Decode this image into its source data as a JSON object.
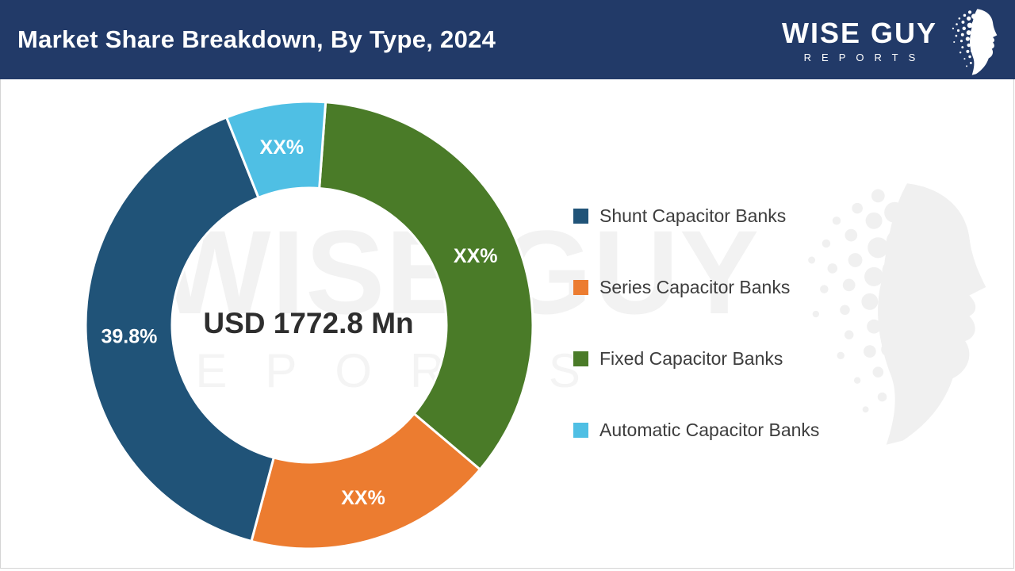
{
  "header": {
    "title": "Market Share Breakdown, By Type, 2024",
    "logo": {
      "line1": "WISE GUY",
      "line2": "REPORTS"
    }
  },
  "watermark": {
    "line1": "WISE GUY",
    "line2": "REPORTS"
  },
  "chart_data": {
    "type": "pie",
    "subtype": "donut",
    "title": "Market Share Breakdown, By Type, 2024",
    "center_label": "USD 1772.8 Mn",
    "start_angle_deg": 4.2,
    "clockwise": true,
    "inner_radius_ratio": 0.613,
    "segments": [
      {
        "name": "Fixed Capacitor Banks",
        "display_label": "XX%",
        "value_pct": 35.0,
        "color": "#4a7b28"
      },
      {
        "name": "Series Capacitor Banks",
        "display_label": "XX%",
        "value_pct": 18.0,
        "color": "#ec7c30"
      },
      {
        "name": "Shunt Capacitor Banks",
        "display_label": "39.8%",
        "value_pct": 39.8,
        "color": "#205378"
      },
      {
        "name": "Automatic Capacitor Banks",
        "display_label": "XX%",
        "value_pct": 7.2,
        "color": "#4fbfe4"
      }
    ],
    "legend": [
      {
        "label": "Shunt Capacitor Banks",
        "color": "#205378"
      },
      {
        "label": "Series Capacitor Banks",
        "color": "#ec7c30"
      },
      {
        "label": "Fixed Capacitor Banks",
        "color": "#4a7b28"
      },
      {
        "label": "Automatic Capacitor Banks",
        "color": "#4fbfe4"
      }
    ],
    "legend_position": "right"
  },
  "colors": {
    "header_bg": "#223a68",
    "header_text": "#ffffff",
    "segment_label_text": "#ffffff",
    "center_text": "#2e2e2e",
    "legend_text": "#3d3d3d",
    "watermark": "#f2f2f2",
    "frame_border": "#d4d4d4"
  }
}
